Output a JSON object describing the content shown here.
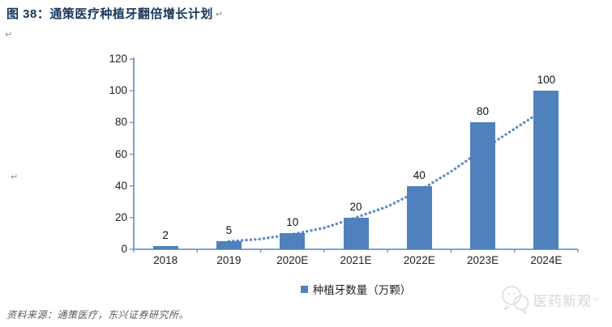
{
  "title": {
    "text": "图 38：通策医疗种植牙翻倍增长计划"
  },
  "editing_marks": {
    "return_mark": "↵"
  },
  "chart_data": {
    "type": "bar",
    "title": "通策医疗种植牙翻倍增长计划",
    "categories": [
      "2018",
      "2019",
      "2020E",
      "2021E",
      "2022E",
      "2023E",
      "2024E"
    ],
    "values": [
      2,
      5,
      10,
      20,
      40,
      80,
      100
    ],
    "data_labels": [
      "2",
      "5",
      "10",
      "20",
      "40",
      "80",
      "100"
    ],
    "legend": "种植牙数量（万颗）",
    "legend_position": "bottom",
    "xlabel": "",
    "ylabel": "",
    "ylim": [
      0,
      120
    ],
    "yticks": [
      0,
      20,
      40,
      60,
      80,
      100,
      120
    ],
    "grid": false,
    "bar_color": "#4f81bd",
    "axis_color": "#7095c8",
    "label_color": "#111111",
    "trendline": {
      "style": "dotted",
      "color": "#5b8dc9",
      "comment": "dotted exponential growth curve from 2019 toward 2024E",
      "points": [
        [
          1,
          5
        ],
        [
          1.5,
          6.5
        ],
        [
          2,
          9.5
        ],
        [
          2.5,
          13.5
        ],
        [
          3,
          20
        ],
        [
          3.5,
          27
        ],
        [
          4,
          37
        ],
        [
          4.5,
          49
        ],
        [
          5,
          63
        ],
        [
          5.5,
          76
        ],
        [
          5.85,
          85
        ]
      ]
    }
  },
  "footer": {
    "source": "资料来源：通策医疗，东兴证券研究所。"
  },
  "watermark": {
    "text": "医药新观",
    "icon": "chat-bubbles-icon"
  }
}
